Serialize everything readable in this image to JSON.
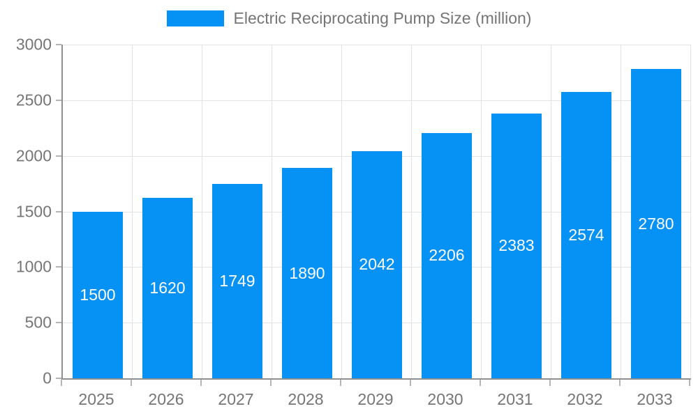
{
  "chart_data": {
    "type": "bar",
    "title": "Electric Reciprocating Pump Size (million)",
    "categories": [
      "2025",
      "2026",
      "2027",
      "2028",
      "2029",
      "2030",
      "2031",
      "2032",
      "2033"
    ],
    "values": [
      1500,
      1620,
      1749,
      1890,
      2042,
      2206,
      2383,
      2574,
      2780
    ],
    "xlabel": "",
    "ylabel": "",
    "ylim": [
      0,
      3000
    ],
    "yticks": [
      0,
      500,
      1000,
      1500,
      2000,
      2500,
      3000
    ],
    "legend_position": "top",
    "grid": true,
    "bar_color": "#0692F4",
    "value_label_color": "#FFFFFF",
    "axis_text_color": "#757575",
    "gridline_color": "#e3e3e3",
    "axis_line_color": "#8f8f8f"
  }
}
